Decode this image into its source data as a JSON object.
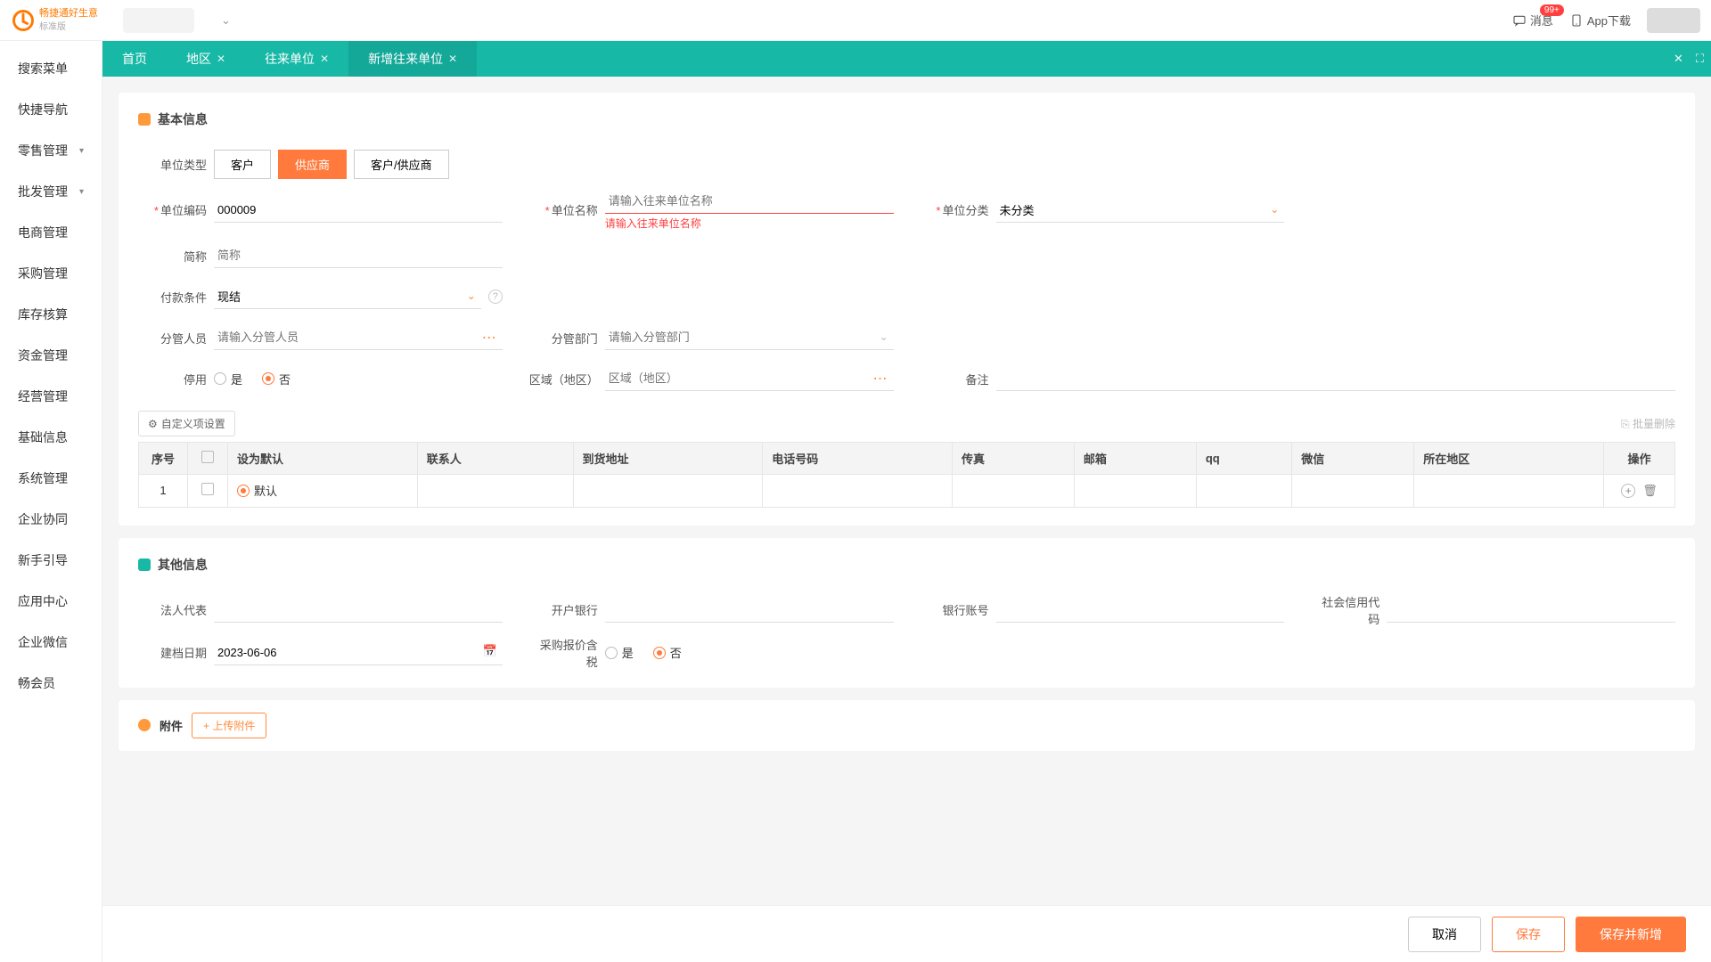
{
  "brand": {
    "name": "畅捷通好生意",
    "edition": "标准版"
  },
  "topbar": {
    "messages_label": "消息",
    "messages_badge": "99+",
    "download_label": "App下载"
  },
  "sidebar": {
    "items": [
      {
        "label": "搜索菜单",
        "caret": false
      },
      {
        "label": "快捷导航",
        "caret": false
      },
      {
        "label": "零售管理",
        "caret": true
      },
      {
        "label": "批发管理",
        "caret": true
      },
      {
        "label": "电商管理",
        "caret": false
      },
      {
        "label": "采购管理",
        "caret": false
      },
      {
        "label": "库存核算",
        "caret": false
      },
      {
        "label": "资金管理",
        "caret": false
      },
      {
        "label": "经营管理",
        "caret": false
      },
      {
        "label": "基础信息",
        "caret": false
      },
      {
        "label": "系统管理",
        "caret": false
      },
      {
        "label": "企业协同",
        "caret": false
      },
      {
        "label": "新手引导",
        "caret": false
      },
      {
        "label": "应用中心",
        "caret": false
      },
      {
        "label": "企业微信",
        "caret": false
      },
      {
        "label": "畅会员",
        "caret": false
      }
    ]
  },
  "tabs": [
    {
      "label": "首页",
      "closable": false,
      "active": false
    },
    {
      "label": "地区",
      "closable": true,
      "active": false
    },
    {
      "label": "往来单位",
      "closable": true,
      "active": false
    },
    {
      "label": "新增往来单位",
      "closable": true,
      "active": true
    }
  ],
  "sections": {
    "basic_title": "基本信息",
    "other_title": "其他信息",
    "attach_title": "附件"
  },
  "form": {
    "unit_type_label": "单位类型",
    "unit_type_options": [
      "客户",
      "供应商",
      "客户/供应商"
    ],
    "unit_type_selected": 1,
    "unit_code_label": "单位编码",
    "unit_code_value": "000009",
    "unit_name_label": "单位名称",
    "unit_name_placeholder": "请输入往来单位名称",
    "unit_name_error": "请输入往来单位名称",
    "unit_category_label": "单位分类",
    "unit_category_value": "未分类",
    "short_name_label": "简称",
    "short_name_placeholder": "简称",
    "payment_terms_label": "付款条件",
    "payment_terms_value": "现结",
    "manager_label": "分管人员",
    "manager_placeholder": "请输入分管人员",
    "dept_label": "分管部门",
    "dept_placeholder": "请输入分管部门",
    "disabled_label": "停用",
    "region_label": "区域（地区）",
    "region_placeholder": "区域（地区）",
    "remark_label": "备注",
    "yes": "是",
    "no": "否",
    "custom_fields_btn": "自定义项设置",
    "batch_delete": "批量删除",
    "legal_label": "法人代表",
    "bank_label": "开户银行",
    "account_label": "银行账号",
    "credit_label": "社会信用代码",
    "created_label": "建档日期",
    "created_value": "2023-06-06",
    "tax_label": "采购报价含税",
    "upload_btn": "+ 上传附件"
  },
  "contacts_table": {
    "headers": [
      "序号",
      "",
      "设为默认",
      "联系人",
      "到货地址",
      "电话号码",
      "传真",
      "邮箱",
      "qq",
      "微信",
      "所在地区",
      "操作"
    ],
    "rows": [
      {
        "idx": "1",
        "default_label": "默认"
      }
    ]
  },
  "footer": {
    "cancel": "取消",
    "save": "保存",
    "save_new": "保存并新增"
  },
  "colors": {
    "brand_teal": "#17b8a6",
    "brand_orange": "#ff7a3c",
    "error": "#ff4040"
  }
}
